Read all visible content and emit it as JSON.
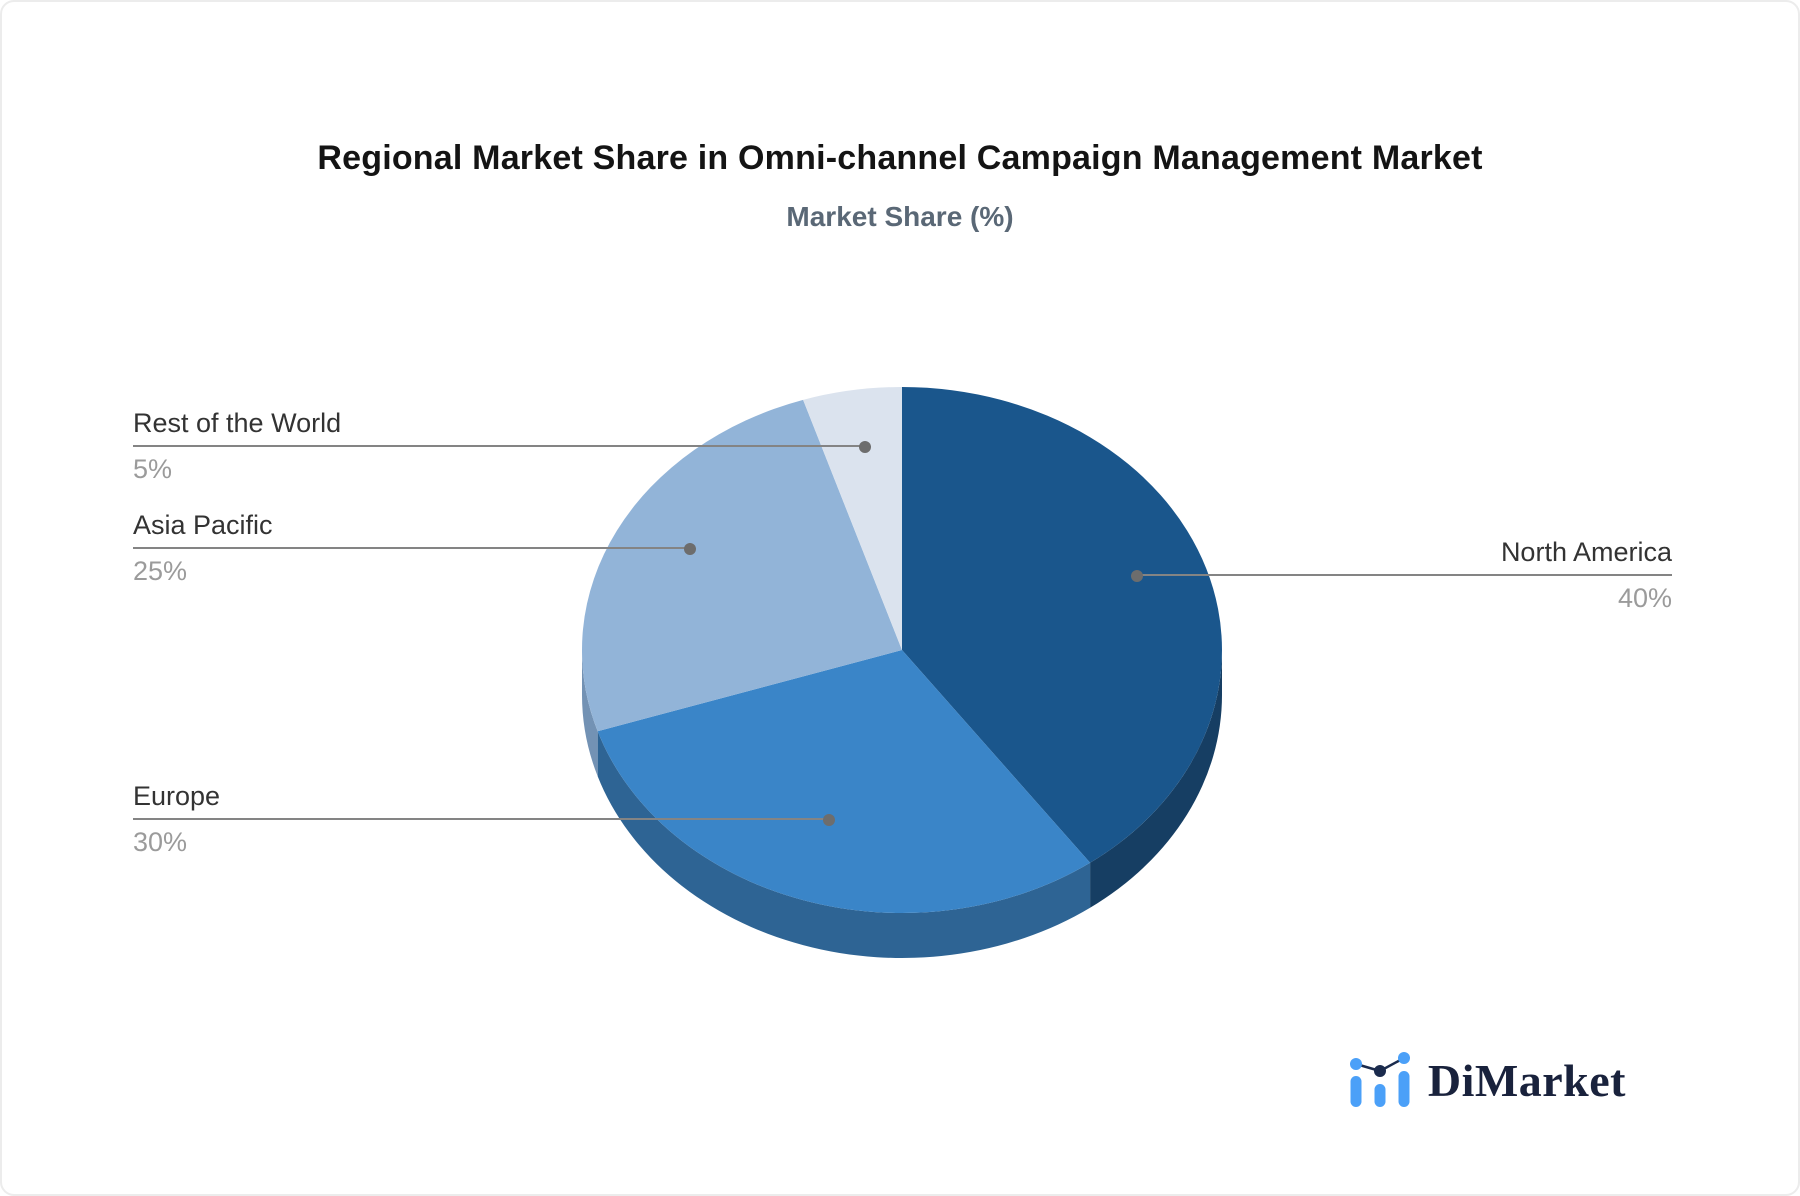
{
  "chart_data": {
    "type": "pie",
    "variant": "3d-pie",
    "title": "Regional Market Share in Omni-channel Campaign Management Market",
    "subtitle": "Market Share (%)",
    "unit": "%",
    "direction": "clockwise",
    "start_angle_deg": 0,
    "legend_position": "callout-labels",
    "slices": [
      {
        "label": "North America",
        "value": 40,
        "pct": "40%",
        "color": "#1A568C",
        "side_color": "#163E63"
      },
      {
        "label": "Europe",
        "value": 30,
        "pct": "30%",
        "color": "#3A85C8",
        "side_color": "#2E6494"
      },
      {
        "label": "Asia Pacific",
        "value": 25,
        "pct": "25%",
        "color": "#92B4D8",
        "side_color": "#7392B4"
      },
      {
        "label": "Rest of the World",
        "value": 5,
        "pct": "5%",
        "color": "#DBE3EE",
        "side_color": "#BCC8D9"
      }
    ]
  },
  "callout_style": {
    "line_color": "#848484",
    "dot_color": "#6d6d6d",
    "label_color": "#333333",
    "pct_color": "#9b9b9b"
  },
  "branding": {
    "logo_text": "DiMarket",
    "logo_bar_color": "#4BA0F8",
    "logo_accent_color": "#1B2B4D"
  }
}
